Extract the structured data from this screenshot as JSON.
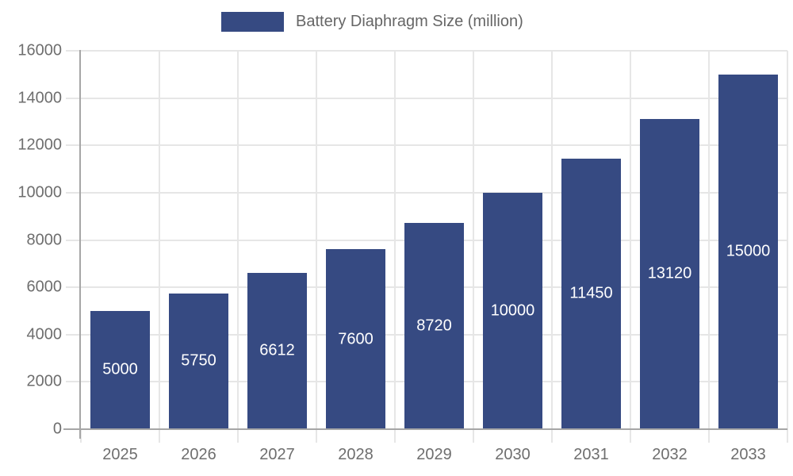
{
  "chart_data": {
    "type": "bar",
    "title": "Battery Diaphragm Size (million)",
    "categories": [
      "2025",
      "2026",
      "2027",
      "2028",
      "2029",
      "2030",
      "2031",
      "2032",
      "2033"
    ],
    "values": [
      5000,
      5750,
      6612,
      7600,
      8720,
      10000,
      11450,
      13120,
      15000
    ],
    "xlabel": "",
    "ylabel": "",
    "ylim": [
      0,
      16000
    ],
    "y_ticks": [
      0,
      2000,
      4000,
      6000,
      8000,
      10000,
      12000,
      14000,
      16000
    ],
    "grid": true,
    "legend_position": "top",
    "value_label_position": "inside-center"
  },
  "colors": {
    "bar": "#364a82",
    "bar_label": "#ffffff",
    "grid": "#e6e6e6",
    "axis": "#a6a6a6",
    "tick_text": "#6e6e6e",
    "legend_text": "#666666",
    "background": "#ffffff"
  }
}
